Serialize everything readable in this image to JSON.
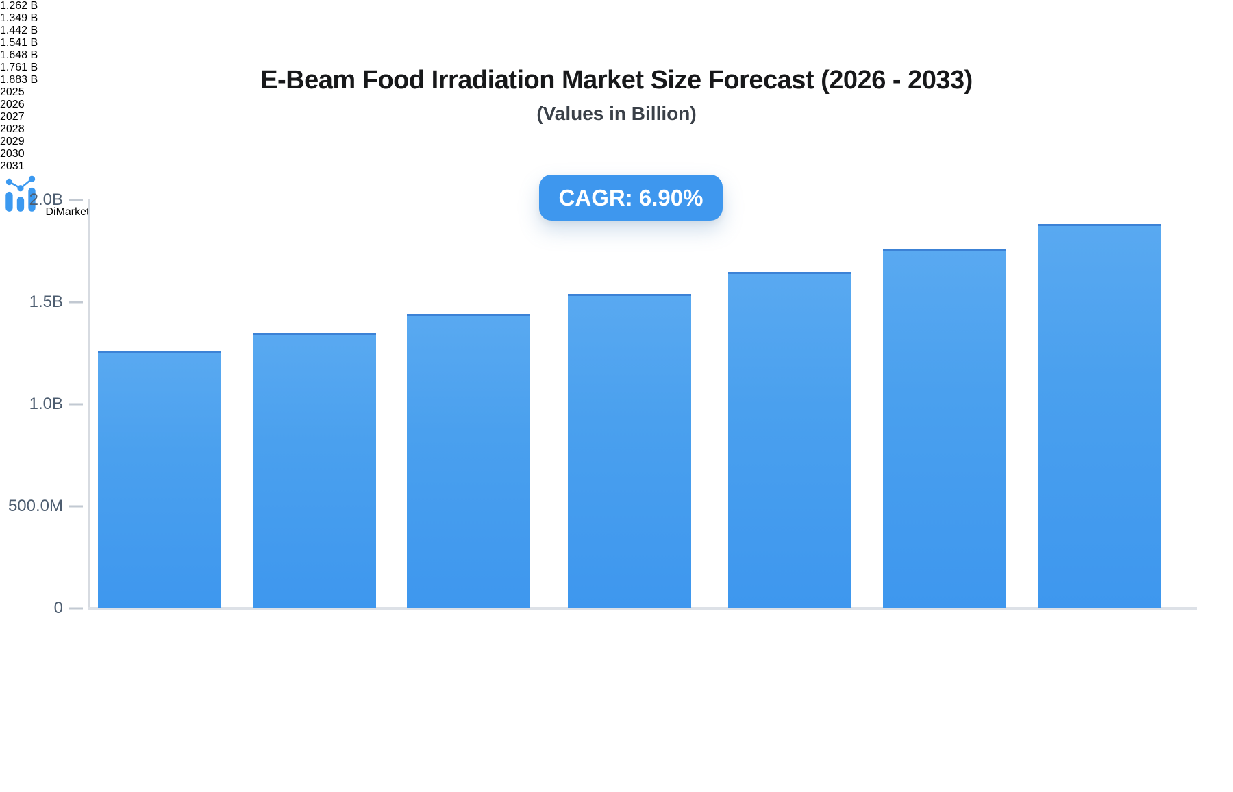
{
  "title": "E-Beam Food Irradiation Market Size Forecast (2026 - 2033)",
  "subtitle": "(Values in Billion)",
  "cagr_badge": "CAGR: 6.90%",
  "brand": {
    "name": "DiMarket",
    "icon": "bar-line-chart-icon",
    "icon_color": "#3b99f0",
    "text_color": "#16233c"
  },
  "colors": {
    "bar_face_top": "#59a9f1",
    "bar_face_bottom": "#3e97ee",
    "bar_side": "#2d73b4",
    "bar_top_edge": "#3c82d6",
    "badge_background": "#3e97ee",
    "badge_text": "#ffffff",
    "axis_line": "#d7dbe1",
    "tick_dash": "#c2c9d2",
    "y_label_text": "#4d5d70",
    "x_label_text": "#2c3a4d",
    "value_label_text": "#0f1115",
    "title_text": "#17181a"
  },
  "chart_data": {
    "type": "bar",
    "title": "E-Beam Food Irradiation Market Size Forecast (2026 - 2033)",
    "subtitle": "(Values in Billion)",
    "annotation": "CAGR: 6.90%",
    "categories": [
      "2025",
      "2026",
      "2027",
      "2028",
      "2029",
      "2030",
      "2031"
    ],
    "values": [
      1.262,
      1.349,
      1.442,
      1.541,
      1.648,
      1.761,
      1.883
    ],
    "value_labels": [
      "1.262 B",
      "1.349 B",
      "1.442 B",
      "1.541 B",
      "1.648 B",
      "1.761 B",
      "1.883 B"
    ],
    "xlabel": "",
    "ylabel": "",
    "ylim": [
      0,
      2.0
    ],
    "yticks": [
      {
        "value": 0.0,
        "label": "0"
      },
      {
        "value": 0.5,
        "label": "500.0M"
      },
      {
        "value": 1.0,
        "label": "1.0B"
      },
      {
        "value": 1.5,
        "label": "1.5B"
      },
      {
        "value": 2.0,
        "label": "2.0B"
      }
    ],
    "grid": false,
    "legend": null,
    "style": "pseudo-3d bars, perspective toward center"
  }
}
